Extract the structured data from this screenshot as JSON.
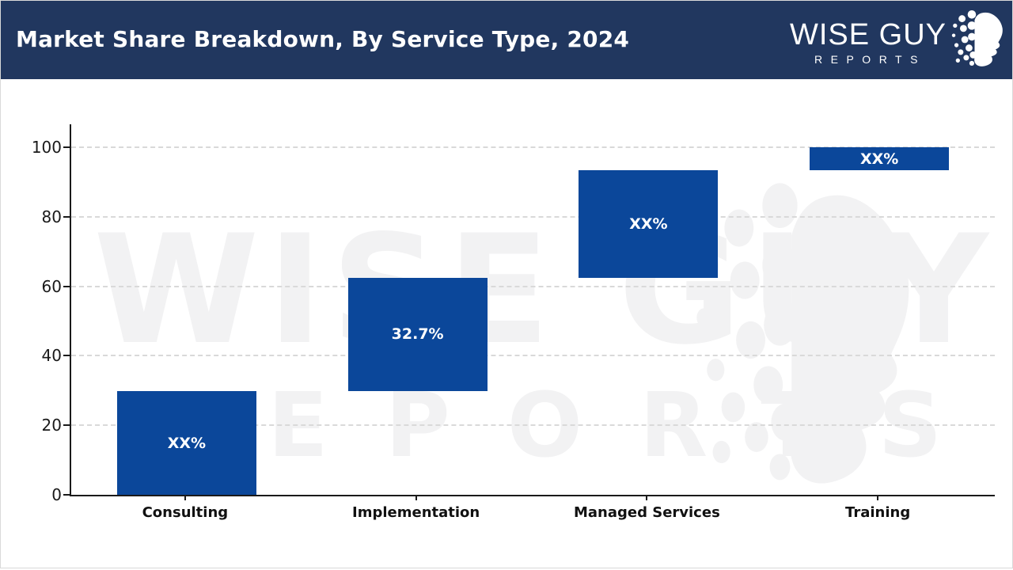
{
  "header": {
    "title": "Market Share Breakdown, By Service Type, 2024",
    "bg_color": "#21375f",
    "logo": {
      "wordmark": "WISE GUY",
      "subtext": "REPORTS"
    }
  },
  "watermark": {
    "line1": "WISE GUY",
    "line2": "REPORTS"
  },
  "chart_data": {
    "type": "bar",
    "subtype": "waterfall",
    "title": "Market Share Breakdown, By Service Type, 2024",
    "categories": [
      "Consulting",
      "Implementation",
      "Managed Services",
      "Training"
    ],
    "bars": [
      {
        "category": "Consulting",
        "start": 0,
        "end": 29.8,
        "label": "XX%"
      },
      {
        "category": "Implementation",
        "start": 29.8,
        "end": 62.5,
        "label": "32.7%"
      },
      {
        "category": "Managed Services",
        "start": 62.5,
        "end": 93.3,
        "label": "XX%"
      },
      {
        "category": "Training",
        "start": 93.3,
        "end": 100,
        "label": "XX%"
      }
    ],
    "xlabel": "",
    "ylabel": "",
    "y_ticks": [
      0,
      20,
      40,
      60,
      80,
      100
    ],
    "ylim": [
      0,
      107
    ],
    "grid": "horizontal-dashed",
    "legend": "none",
    "bar_color": "#0b479a",
    "grid_color": "#d9d9d9",
    "axis_color": "#1a1a1a",
    "label_color": "#ffffff"
  }
}
